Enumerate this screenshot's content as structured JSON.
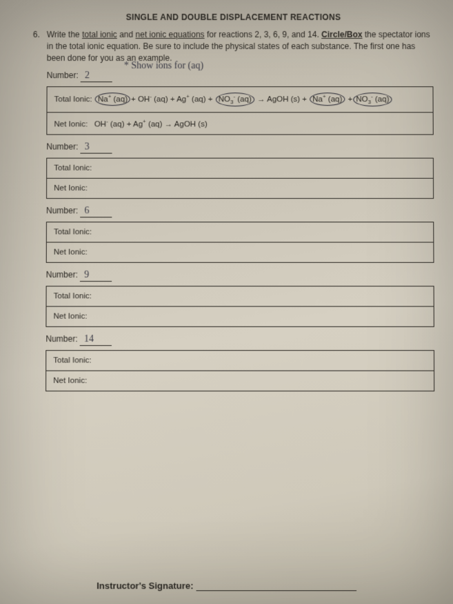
{
  "title": "SINGLE AND DOUBLE DISPLACEMENT REACTIONS",
  "question_number": "6.",
  "instruction_parts": {
    "p1": "Write the ",
    "p2": "total ionic",
    "p3": " and ",
    "p4": "net ionic equations",
    "p5": " for reactions 2, 3, 6, 9, and 14. ",
    "p6": "Circle/Box",
    "p7": " the spectator ions in the total ionic equation. Be sure to include the physical states of each substance. The first one has been done for you as an example."
  },
  "hand_annotation": "* Show ions for (aq)",
  "number_label": "Number:",
  "labels": {
    "total": "Total Ionic:",
    "net": "Net Ionic:"
  },
  "blocks": [
    {
      "number_hw": "2",
      "total_html": "<span class='circled'>Na<sup>+</sup> (aq)</span>+ OH<sup>-</sup> (aq) + Ag<sup>+</sup> (aq) + <span class='circled'>NO<sub>3</sub><sup>-</sup> (aq)</span> → AgOH (s) + <span class='circled'>Na<sup>+</sup> (aq)</span> +<span class='circled'>NO<sub>3</sub><sup>-</sup> (aq)</span>",
      "net_html": "OH<sup>-</sup> (aq) + Ag<sup>+</sup> (aq) → AgOH (s)"
    },
    {
      "number_hw": "3",
      "total_html": "",
      "net_html": ""
    },
    {
      "number_hw": "6",
      "total_html": "",
      "net_html": ""
    },
    {
      "number_hw": "9",
      "total_html": "",
      "net_html": ""
    },
    {
      "number_hw": "14",
      "total_html": "",
      "net_html": ""
    }
  ],
  "signature_label": "Instructor's Signature:",
  "colors": {
    "page_bg_top": "#b8b2a5",
    "page_bg_mid": "#d6d0c2",
    "ink": "#2a2722",
    "pen": "#3a3a45"
  }
}
